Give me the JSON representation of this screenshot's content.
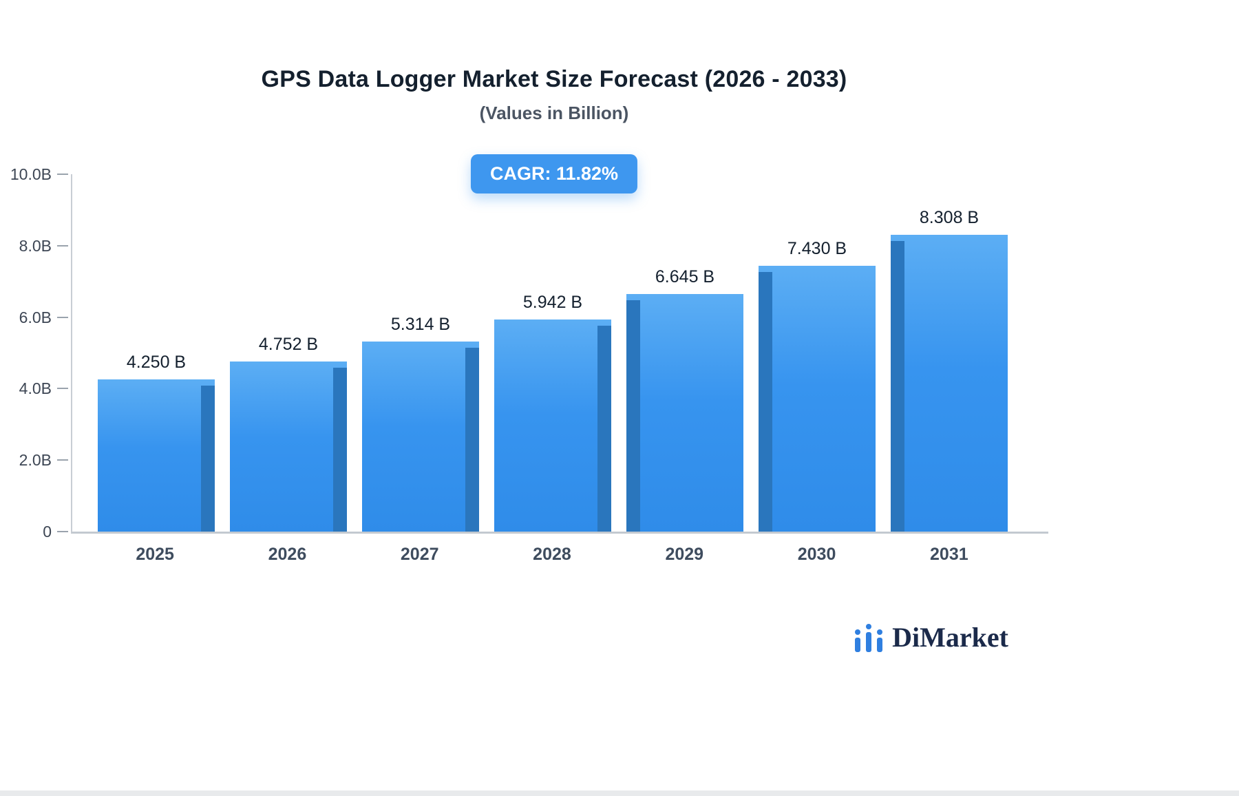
{
  "header": {
    "title": "GPS Data Logger Market Size Forecast (2026 - 2033)",
    "subtitle": "(Values in Billion)"
  },
  "badge": {
    "label": "CAGR: 11.82%",
    "color": "#3e97ef"
  },
  "brand": {
    "name": "DiMarket",
    "logo_color": "#2f7fe0",
    "text_color": "#1b2a4a"
  },
  "chart_data": {
    "type": "bar",
    "title": "GPS Data Logger Market Size Forecast (2026 - 2033)",
    "subtitle": "(Values in Billion)",
    "categories": [
      "2025",
      "2026",
      "2027",
      "2028",
      "2029",
      "2030",
      "2031"
    ],
    "values": [
      4.25,
      4.752,
      5.314,
      5.942,
      6.645,
      7.43,
      8.308
    ],
    "value_labels": [
      "4.250 B",
      "4.752 B",
      "5.314 B",
      "5.942 B",
      "6.645 B",
      "7.430 B",
      "8.308 B"
    ],
    "xlabel": "",
    "ylabel": "",
    "ylim": [
      0,
      10
    ],
    "yticks": [
      {
        "value": 10,
        "label": "10.0B"
      },
      {
        "value": 8,
        "label": "8.0B"
      },
      {
        "value": 6,
        "label": "6.0B"
      },
      {
        "value": 4,
        "label": "4.0B"
      },
      {
        "value": 2,
        "label": "2.0B"
      },
      {
        "value": 0,
        "label": "0"
      }
    ],
    "grid": false,
    "legend": "none",
    "colors": {
      "bar_top": "#5caef4",
      "bar_mid": "#3794ef",
      "bar_bottom": "#2f8ce9",
      "bar_side": "#2a76bd"
    }
  }
}
